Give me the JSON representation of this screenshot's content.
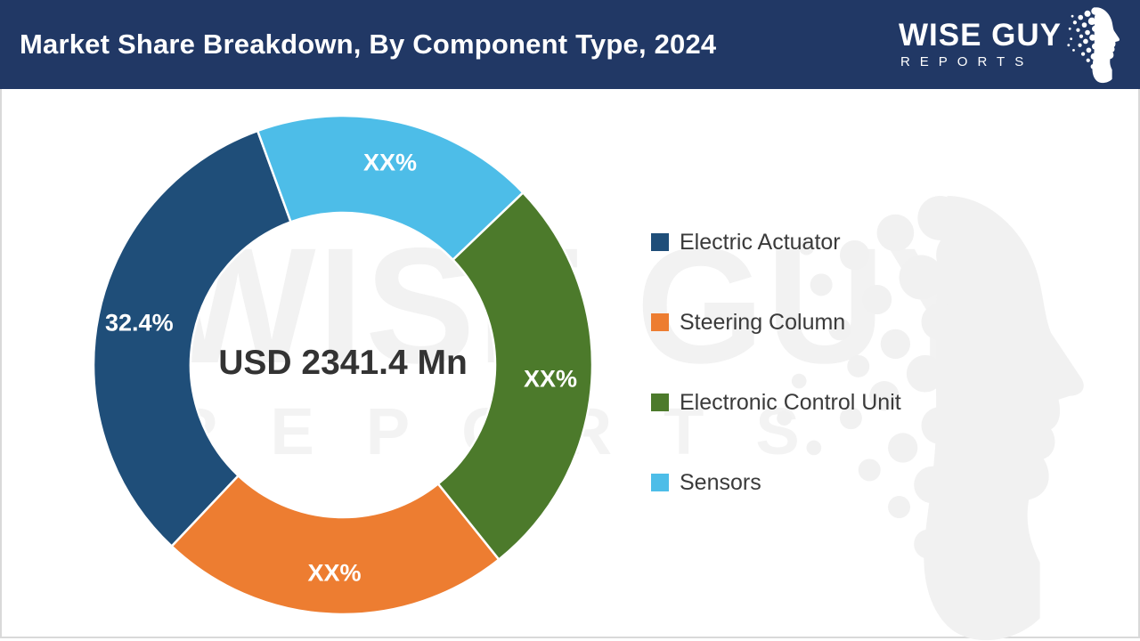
{
  "header": {
    "title": "Market Share Breakdown, By Component Type, 2024",
    "logo": {
      "line1": "WISE GUY",
      "line2": "REPORTS"
    }
  },
  "chart_data": {
    "type": "pie",
    "subtype": "donut",
    "title": "Market Share Breakdown, By Component Type, 2024",
    "center_label": "USD 2341.4 Mn",
    "legend_position": "right",
    "start_angle_deg": 110,
    "direction": "counterclockwise",
    "inner_radius_ratio": 0.61,
    "segments": [
      {
        "name": "Electric Actuator",
        "display_label": "32.4%",
        "value_pct": 32.4,
        "estimated": false,
        "color": "#1f4e79"
      },
      {
        "name": "Steering Column",
        "display_label": "XX%",
        "value_pct": 22.8,
        "estimated": true,
        "color": "#ed7d31"
      },
      {
        "name": "Electronic Control Unit",
        "display_label": "XX%",
        "value_pct": 26.4,
        "estimated": true,
        "color": "#4c7a2b"
      },
      {
        "name": "Sensors",
        "display_label": "XX%",
        "value_pct": 18.4,
        "estimated": true,
        "color": "#4dbde8"
      }
    ]
  },
  "watermark": {
    "line1": "WISE GUY",
    "line2": "REPORTS"
  },
  "colors": {
    "header_background": "#213865",
    "center_label_text": "#333333",
    "legend_text": "#3a3a3a",
    "slice_label_text": "#ffffff",
    "border_line": "#d9d9d9",
    "watermark": "#f2f2f2"
  }
}
